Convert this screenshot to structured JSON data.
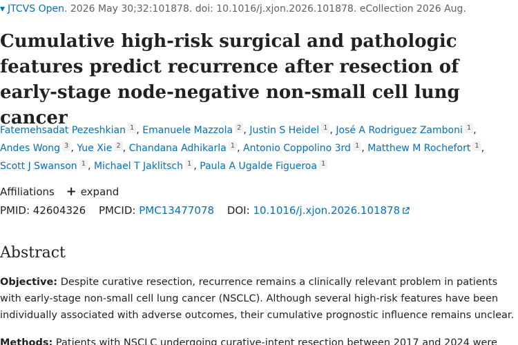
{
  "citation": {
    "journal": "JTCVS Open.",
    "details": " 2026 May 30;32:101878. doi: 10.1016/j.xjon.2026.101878. eCollection 2026 Aug."
  },
  "title": "Cumulative high-risk surgical and pathologic features predict recurrence after resection of early-stage node-negative non-small cell lung cancer",
  "authors": [
    {
      "name": "Fatemehsadat Pezeshkian",
      "aff": "1"
    },
    {
      "name": "Emanuele Mazzola",
      "aff": "2"
    },
    {
      "name": "Justin S Heidel",
      "aff": "1"
    },
    {
      "name": "José A Rodriguez Zamboni",
      "aff": "1"
    },
    {
      "name": "Andes Wong",
      "aff": "3"
    },
    {
      "name": "Yue Xie",
      "aff": "2"
    },
    {
      "name": "Chandana Adhikarla",
      "aff": "1"
    },
    {
      "name": "Antonio Coppolino 3rd",
      "aff": "1"
    },
    {
      "name": "Matthew M Rochefort",
      "aff": "1"
    },
    {
      "name": "Scott J Swanson",
      "aff": "1"
    },
    {
      "name": "Michael T Jaklitsch",
      "aff": "1"
    },
    {
      "name": "Paula A Ugalde Figueroa",
      "aff": "1"
    }
  ],
  "affiliations": {
    "label": "Affiliations",
    "expand": "expand"
  },
  "ids": {
    "pmid_label": "PMID:",
    "pmid": "42604326",
    "pmcid_label": "PMCID:",
    "pmcid": "PMC13477078",
    "doi_label": "DOI:",
    "doi": "10.1016/j.xjon.2026.101878"
  },
  "abstract": {
    "heading": "Abstract",
    "objective_label": "Objective:",
    "objective_text": " Despite curative resection, recurrence remains a clinically relevant problem in patients with early-stage non-small cell lung cancer (NSCLC). Although several high-risk features have been individually associated with adverse outcomes, their cumulative prognostic influence remains unclear.",
    "methods_label": "Methods:",
    "methods_text": " Patients with NSCLC undergoing curative-intent resection between 2017 and 2024 were"
  },
  "colors": {
    "link": "#0071bc",
    "text": "#212121",
    "muted": "#5b616b"
  }
}
